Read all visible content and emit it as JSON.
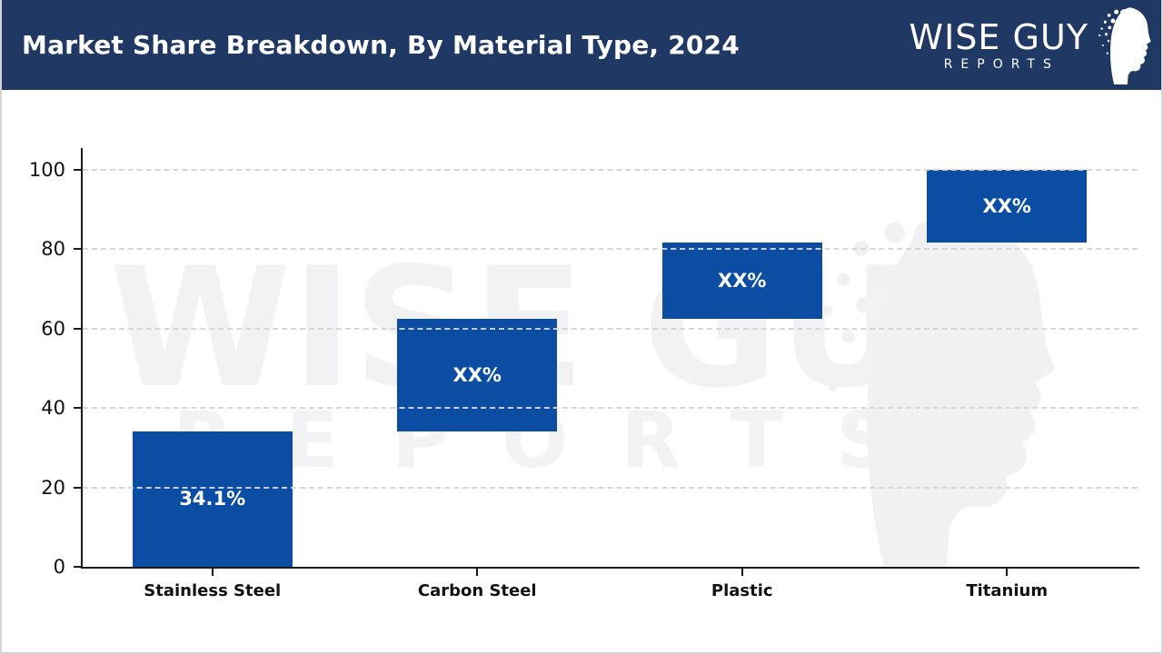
{
  "header": {
    "title": "Market Share Breakdown, By Material Type, 2024",
    "bg_color": "#1f3864",
    "logo": {
      "line1": "WISE GUY",
      "line2": "REPORTS"
    }
  },
  "watermark": {
    "line1": "WISE GUY",
    "line2": "REPORTS"
  },
  "chart_data": {
    "type": "bar",
    "subtype": "waterfall",
    "title": "Market Share Breakdown, By Material Type, 2024",
    "categories": [
      "Stainless Steel",
      "Carbon Steel",
      "Plastic",
      "Titanium"
    ],
    "segments": [
      {
        "category": "Stainless Steel",
        "start": 0,
        "end": 34.1,
        "label": "34.1%"
      },
      {
        "category": "Carbon Steel",
        "start": 34.1,
        "end": 62.5,
        "label": "XX%"
      },
      {
        "category": "Plastic",
        "start": 62.5,
        "end": 81.5,
        "label": "XX%"
      },
      {
        "category": "Titanium",
        "start": 81.5,
        "end": 100,
        "label": "XX%"
      }
    ],
    "yticks": [
      0,
      20,
      40,
      60,
      80,
      100
    ],
    "ylim": [
      0,
      100
    ],
    "grid": "horizontal dashed, drawn over bars",
    "legend": "none",
    "bar_color": "#0b4da2",
    "label_color": "#ffffff",
    "axis_color": "#1a1a1a"
  }
}
